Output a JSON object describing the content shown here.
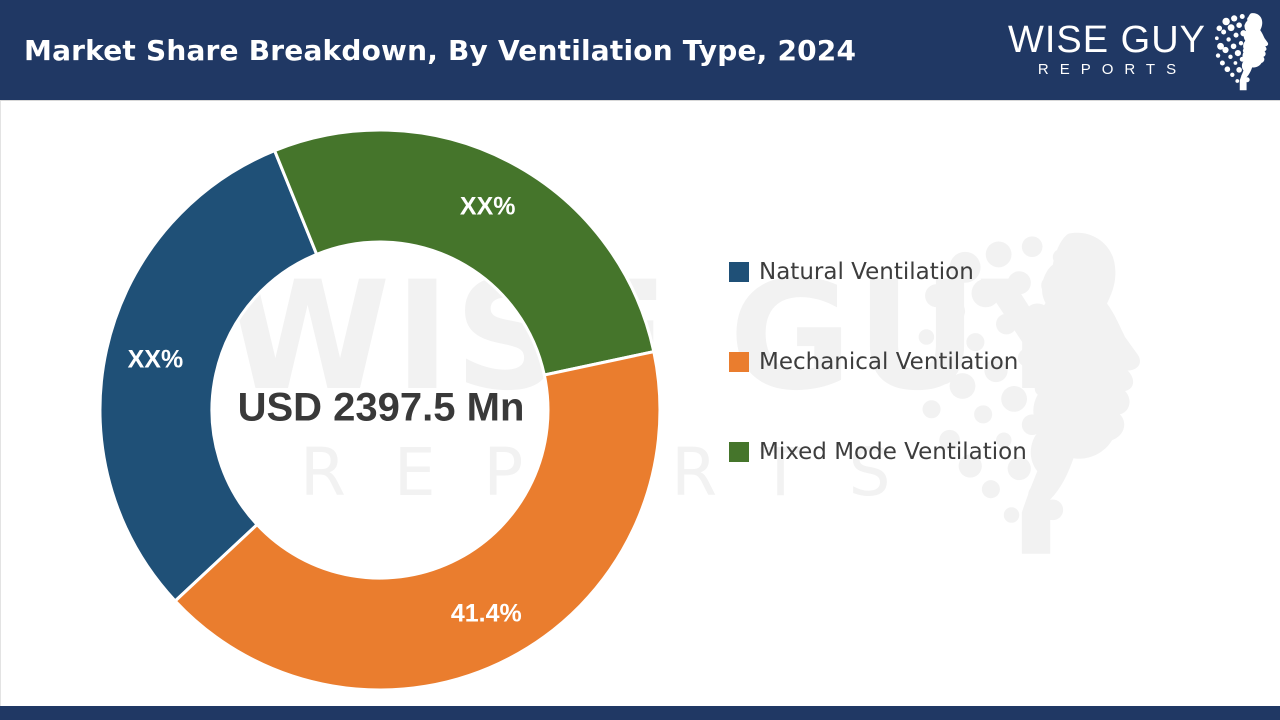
{
  "header": {
    "title": "Market Share Breakdown, By Ventilation Type, 2024",
    "logo": {
      "line1": "WISE GUY",
      "line2": "REPORTS"
    }
  },
  "watermark": {
    "line1": "WISE GUY",
    "line2": "REPORTS"
  },
  "chart_data": {
    "type": "donut",
    "title": "Market Share Breakdown, By Ventilation Type, 2024",
    "center_label": "USD 2397.5 Mn",
    "start_angle_deg": 227,
    "hole_ratio": 0.6,
    "legend_position": "right",
    "slices": [
      {
        "name": "Natural Ventilation",
        "percent": 30.8,
        "display_label": "XX%",
        "color": "#1F5077"
      },
      {
        "name": "Mixed Mode Ventilation",
        "percent": 27.8,
        "display_label": "XX%",
        "color": "#45752B"
      },
      {
        "name": "Mechanical Ventilation",
        "percent": 41.4,
        "display_label": "41.4%",
        "color": "#EA7D2E"
      }
    ]
  },
  "legend": {
    "items": [
      {
        "label": "Natural Ventilation",
        "color": "#1F5077"
      },
      {
        "label": "Mechanical Ventilation",
        "color": "#EA7D2E"
      },
      {
        "label": "Mixed Mode Ventilation",
        "color": "#45752B"
      }
    ]
  },
  "colors": {
    "header_bar": "#203864",
    "footer_bar": "#203864",
    "watermark": "#F2F2F2",
    "center_text": "#393939",
    "legend_text": "#3D3D3D"
  }
}
